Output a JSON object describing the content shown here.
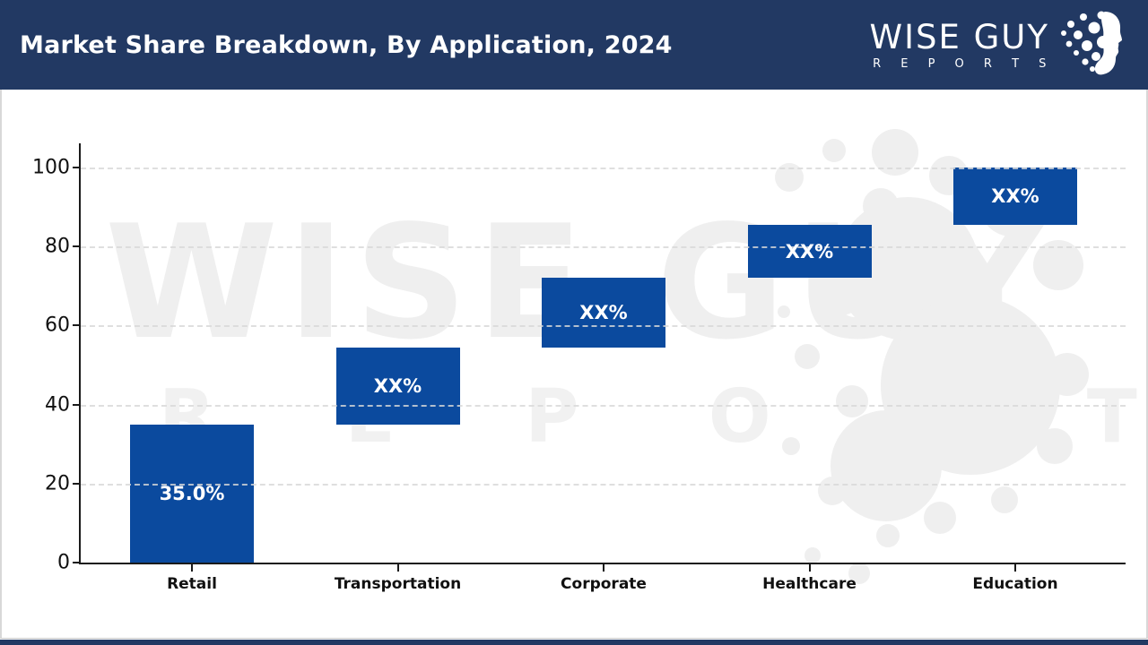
{
  "header": {
    "title": "Market Share Breakdown, By Application, 2024",
    "logo_line1": "WISE GUY",
    "logo_line2": "R E P O R T S"
  },
  "watermark": {
    "line1": "WISE GUY",
    "line2": "R E P O R T S"
  },
  "colors": {
    "header_bg": "#223963",
    "footer_bg": "#223963",
    "bar": "#0b4a9e",
    "bar_label": "#ffffff",
    "grid": "#d9d9d9",
    "axis": "#1a1a1a",
    "watermark": "#efefef"
  },
  "chart_data": {
    "type": "bar",
    "subtype": "waterfall",
    "title": "Market Share Breakdown, By Application, 2024",
    "categories": [
      "Retail",
      "Transportation",
      "Corporate",
      "Healthcare",
      "Education"
    ],
    "series": [
      {
        "name": "Retail",
        "start": 0,
        "end": 35,
        "value": 35.0,
        "label": "35.0%"
      },
      {
        "name": "Transportation",
        "start": 35,
        "end": 54.5,
        "value": 19.5,
        "label": "XX%"
      },
      {
        "name": "Corporate",
        "start": 54.5,
        "end": 72,
        "value": 17.5,
        "label": "XX%"
      },
      {
        "name": "Healthcare",
        "start": 72,
        "end": 85.5,
        "value": 13.5,
        "label": "XX%"
      },
      {
        "name": "Education",
        "start": 85.5,
        "end": 100,
        "value": 14.5,
        "label": "XX%"
      }
    ],
    "yticks": [
      0,
      20,
      40,
      60,
      80,
      100
    ],
    "ylim": [
      0,
      106
    ],
    "xlabel": "",
    "ylabel": "",
    "grid": "horizontal-dashed",
    "legend": false,
    "bar_value_position": "center"
  }
}
